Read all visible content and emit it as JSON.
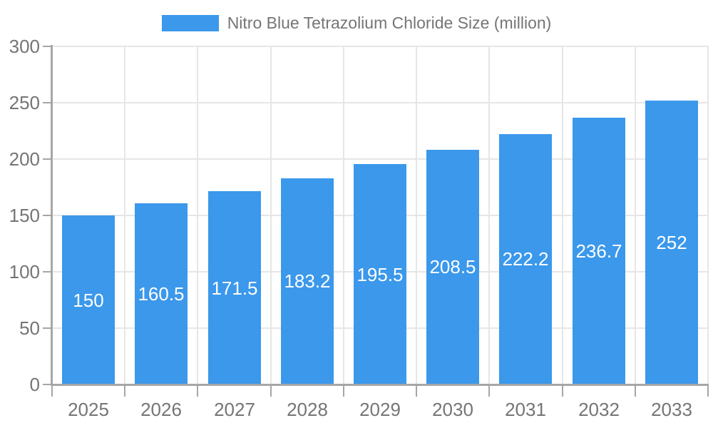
{
  "chart_data": {
    "type": "bar",
    "title": "Nitro Blue Tetrazolium Chloride Size (million)",
    "legend_position": "top",
    "categories": [
      "2025",
      "2026",
      "2027",
      "2028",
      "2029",
      "2030",
      "2031",
      "2032",
      "2033"
    ],
    "values": [
      150,
      160.5,
      171.5,
      183.2,
      195.5,
      208.5,
      222.2,
      236.7,
      252
    ],
    "value_labels": [
      "150",
      "160.5",
      "171.5",
      "183.2",
      "195.5",
      "208.5",
      "222.2",
      "236.7",
      "252"
    ],
    "xlabel": "",
    "ylabel": "",
    "ylim": [
      0,
      300
    ],
    "yticks": [
      0,
      50,
      100,
      150,
      200,
      250,
      300
    ],
    "grid": true,
    "colors": {
      "bar": "#3B98EB",
      "grid": "#E6E6E6",
      "axis": "#A6A6A6",
      "text": "#757575",
      "value_label": "#FFFFFF"
    }
  }
}
